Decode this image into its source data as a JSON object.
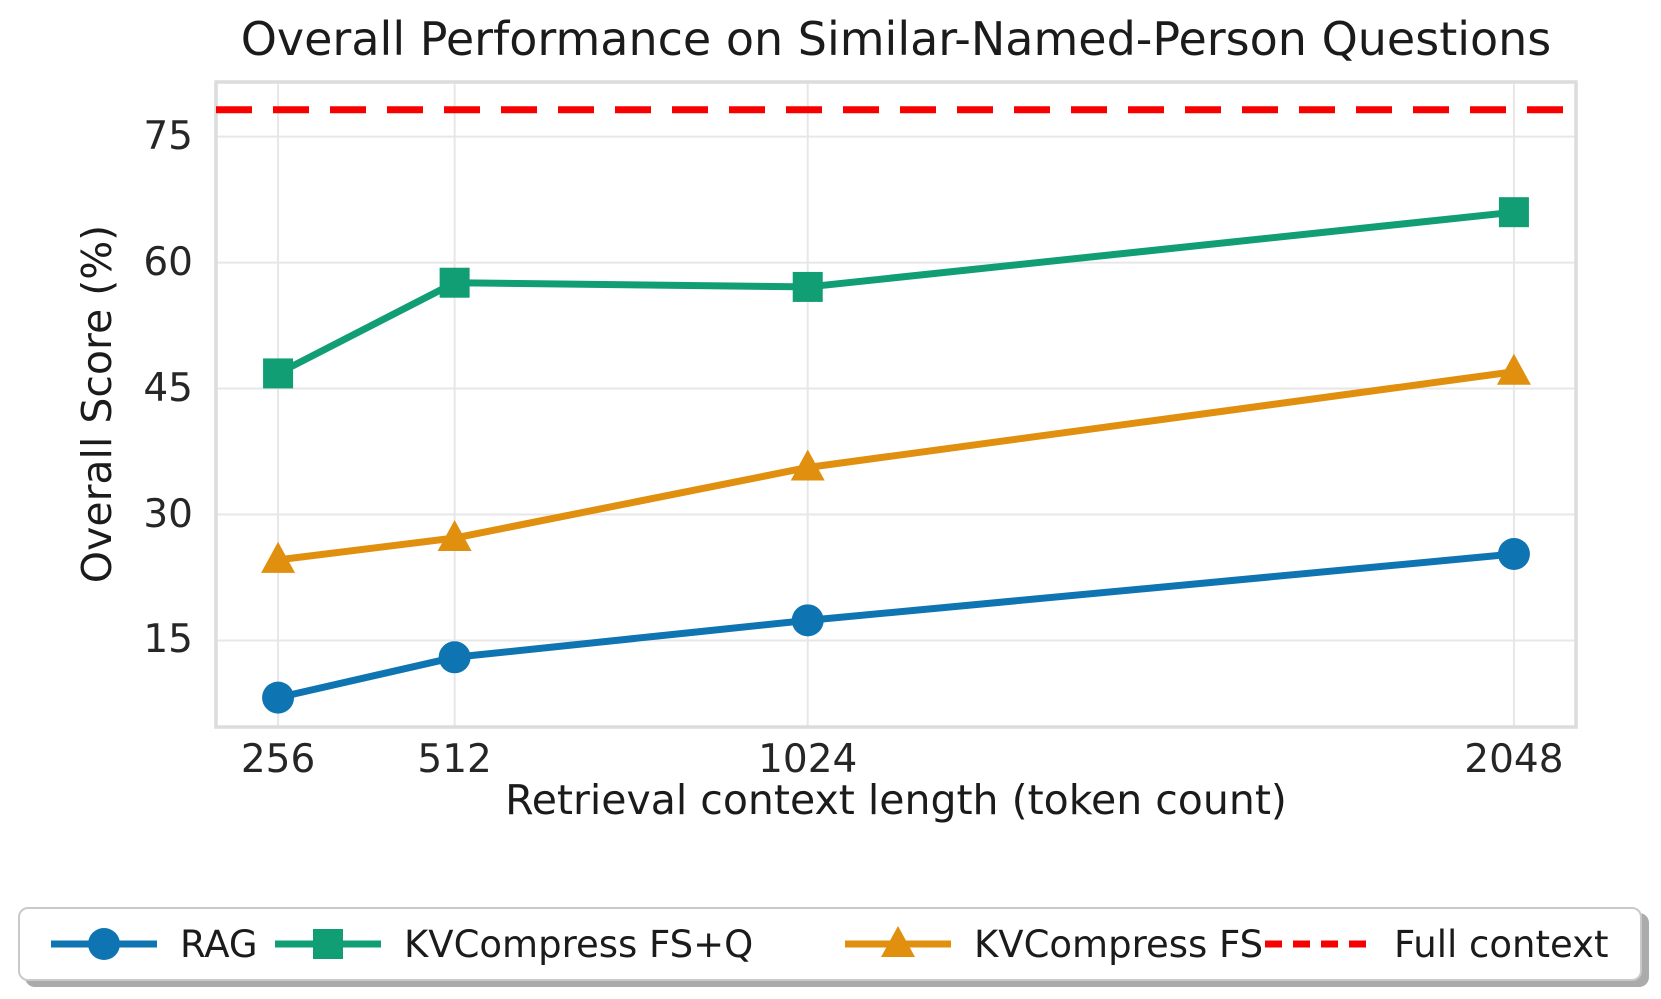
{
  "figure": {
    "background": "#ffffff"
  },
  "chart_data": {
    "type": "line",
    "title": "Overall Performance on Similar-Named-Person Questions",
    "xlabel": "Retrieval context length (token count)",
    "ylabel": "Overall Score (%)",
    "x": [
      256,
      512,
      1024,
      2048
    ],
    "xtick_labels": [
      "256",
      "512",
      "1024",
      "2048"
    ],
    "yticks": [
      15,
      30,
      45,
      60,
      75
    ],
    "xlim": [
      166,
      2138
    ],
    "ylim": [
      4.7,
      81.5
    ],
    "grid": true,
    "grid_color": "#e7e7e7",
    "frame_color": "#dcdcdc",
    "legend_position": "bottom",
    "series": [
      {
        "name": "RAG",
        "color": "#0f74b2",
        "marker": "circle",
        "line": "solid",
        "values": [
          8.2,
          13.0,
          17.4,
          25.3
        ]
      },
      {
        "name": "KVCompress FS+Q",
        "color": "#129e74",
        "marker": "square",
        "line": "solid",
        "values": [
          46.8,
          57.6,
          57.1,
          66.0
        ]
      },
      {
        "name": "KVCompress FS",
        "color": "#e0900e",
        "marker": "triangle",
        "line": "solid",
        "values": [
          24.6,
          27.2,
          35.6,
          47.0
        ]
      },
      {
        "name": "Full context",
        "color": "#f70000",
        "marker": "none",
        "line": "dashed",
        "constant": 78.2
      }
    ]
  }
}
